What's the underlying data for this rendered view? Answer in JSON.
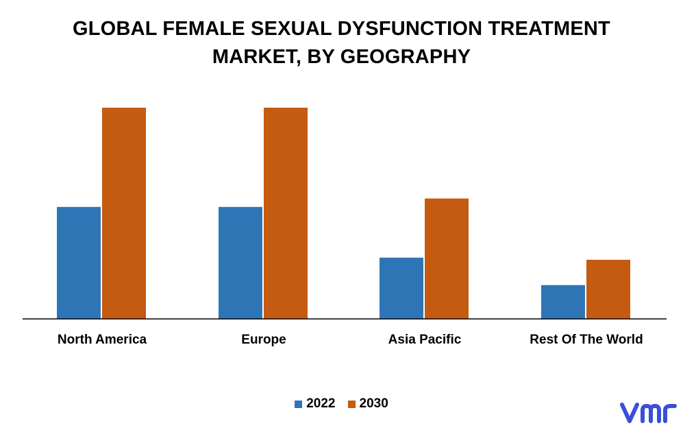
{
  "chart_data": {
    "type": "bar",
    "title_lines": [
      "GLOBAL FEMALE SEXUAL DYSFUNCTION TREATMENT",
      "MARKET, BY GEOGRAPHY"
    ],
    "categories": [
      "North America",
      "Europe",
      "Asia Pacific",
      "Rest Of The World"
    ],
    "series": [
      {
        "name": "2022",
        "values": [
          53,
          53,
          29,
          16
        ],
        "color": "#2e75b6"
      },
      {
        "name": "2030",
        "values": [
          100,
          100,
          57,
          28
        ],
        "color": "#c55a11"
      }
    ],
    "ylim": [
      0,
      100
    ],
    "grid": false,
    "legend_position": "bottom-center"
  },
  "logo": {
    "icon": "vmr-logo-icon",
    "color": "#3a4fd8"
  }
}
